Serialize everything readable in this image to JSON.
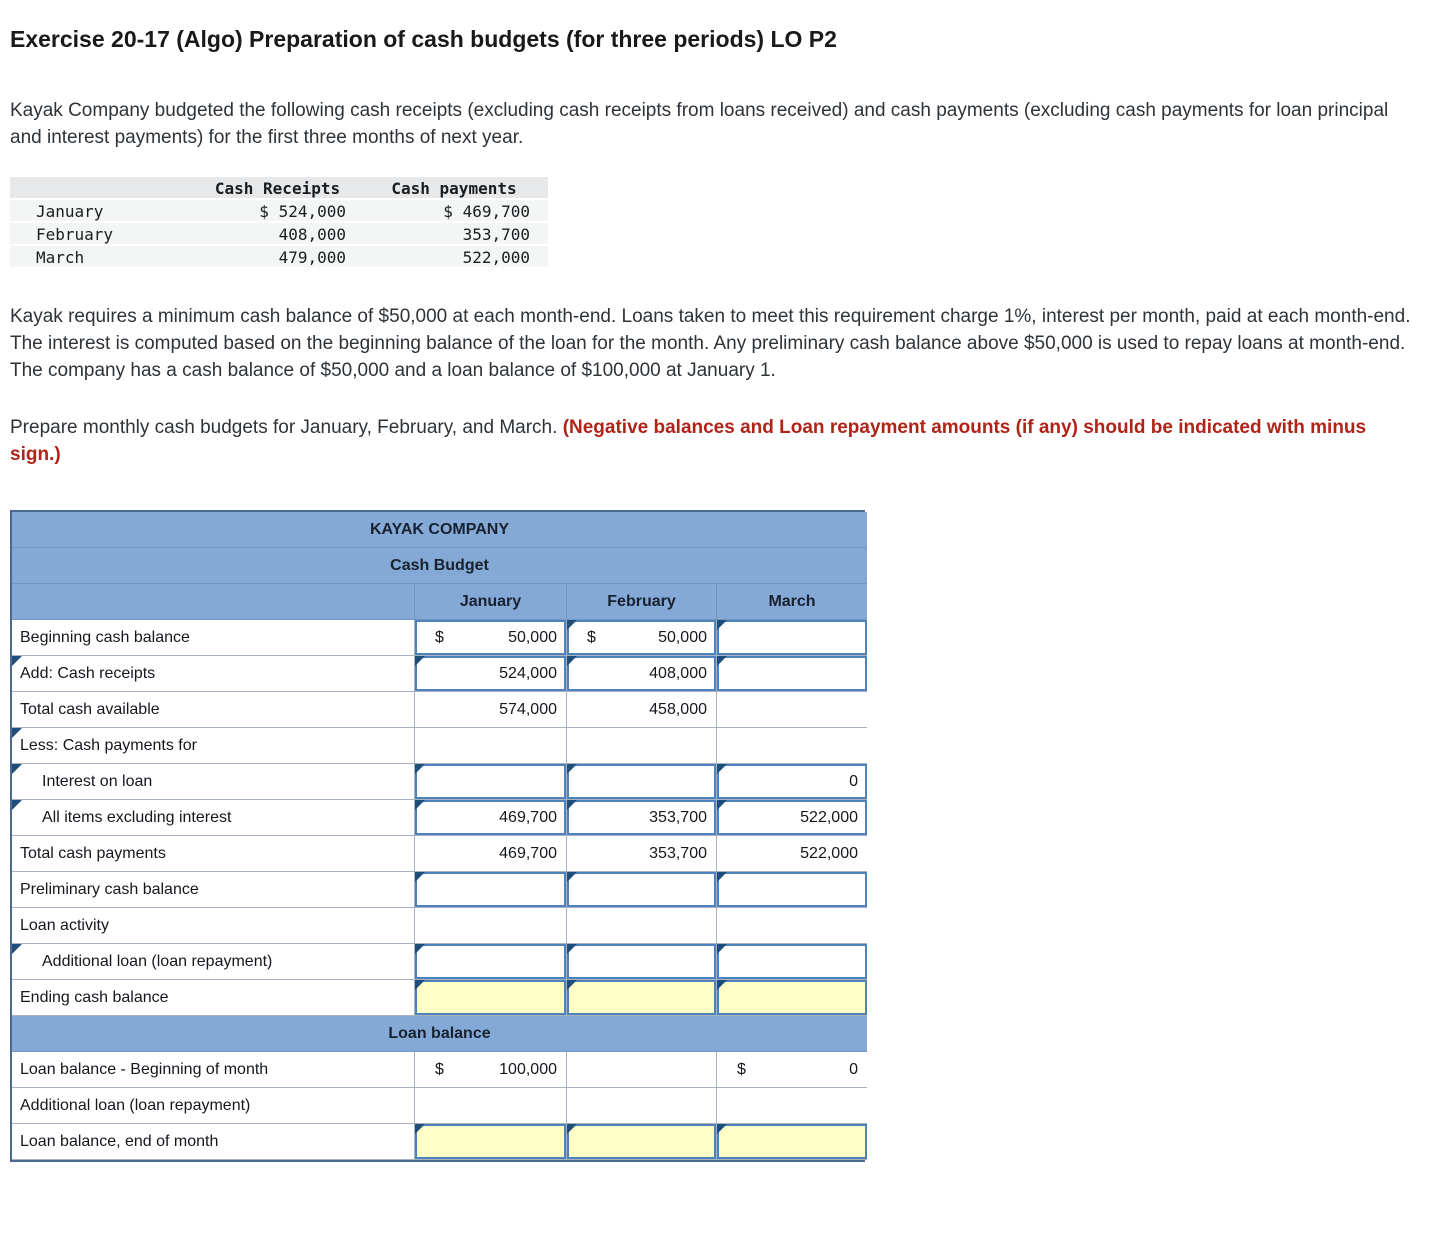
{
  "header": {
    "title": "Exercise 20-17 (Algo) Preparation of cash budgets (for three periods) LO P2"
  },
  "paragraphs": {
    "intro": "Kayak Company budgeted the following cash receipts (excluding cash receipts from loans received) and cash payments (excluding cash payments for loan principal and interest payments) for the first three months of next year.",
    "requirements": "Kayak requires a minimum cash balance of $50,000 at each month-end. Loans taken to meet this requirement charge 1%, interest per month, paid at each month-end. The interest is computed based on the beginning balance of the loan for the month. Any preliminary cash balance above $50,000 is used to repay loans at month-end. The company has a cash balance of $50,000 and a loan balance of $100,000 at January 1.",
    "prepare_normal": "Prepare monthly cash budgets for January, February, and March. ",
    "prepare_red": "(Negative balances and Loan repayment amounts (if any) should be indicated with minus sign.)"
  },
  "receipts_table": {
    "col_receipts": "Cash Receipts",
    "col_payments": "Cash payments",
    "rows": [
      {
        "month": "January",
        "receipts": "$ 524,000",
        "payments": "$ 469,700"
      },
      {
        "month": "February",
        "receipts": "408,000",
        "payments": "353,700"
      },
      {
        "month": "March",
        "receipts": "479,000",
        "payments": "522,000"
      }
    ]
  },
  "budget": {
    "company": "KAYAK COMPANY",
    "subtitle": "Cash Budget",
    "months": [
      "January",
      "February",
      "March"
    ],
    "loan_section_title": "Loan balance",
    "rows": {
      "beginning": {
        "label": "Beginning cash balance",
        "jan_cur": "$",
        "jan": "50,000",
        "feb_cur": "$",
        "feb": "50,000"
      },
      "receipts": {
        "label": "Add: Cash receipts",
        "jan": "524,000",
        "feb": "408,000"
      },
      "total_available": {
        "label": "Total cash available",
        "jan": "574,000",
        "feb": "458,000"
      },
      "less_header": {
        "label": "Less: Cash payments for"
      },
      "interest": {
        "label": "Interest on loan",
        "mar": "0"
      },
      "all_items": {
        "label": "All items excluding interest",
        "jan": "469,700",
        "feb": "353,700",
        "mar": "522,000"
      },
      "total_payments": {
        "label": "Total cash payments",
        "jan": "469,700",
        "feb": "353,700",
        "mar": "522,000"
      },
      "preliminary": {
        "label": "Preliminary cash balance"
      },
      "loan_activity": {
        "label": "Loan activity"
      },
      "additional_loan": {
        "label": "Additional loan (loan repayment)"
      },
      "ending": {
        "label": "Ending cash balance"
      },
      "loan_begin": {
        "label": "Loan balance - Beginning of month",
        "jan_cur": "$",
        "jan": "100,000",
        "mar_cur": "$",
        "mar": "0"
      },
      "additional_loan2": {
        "label": "Additional loan (loan repayment)"
      },
      "loan_end": {
        "label": "Loan balance, end of month"
      }
    }
  }
}
